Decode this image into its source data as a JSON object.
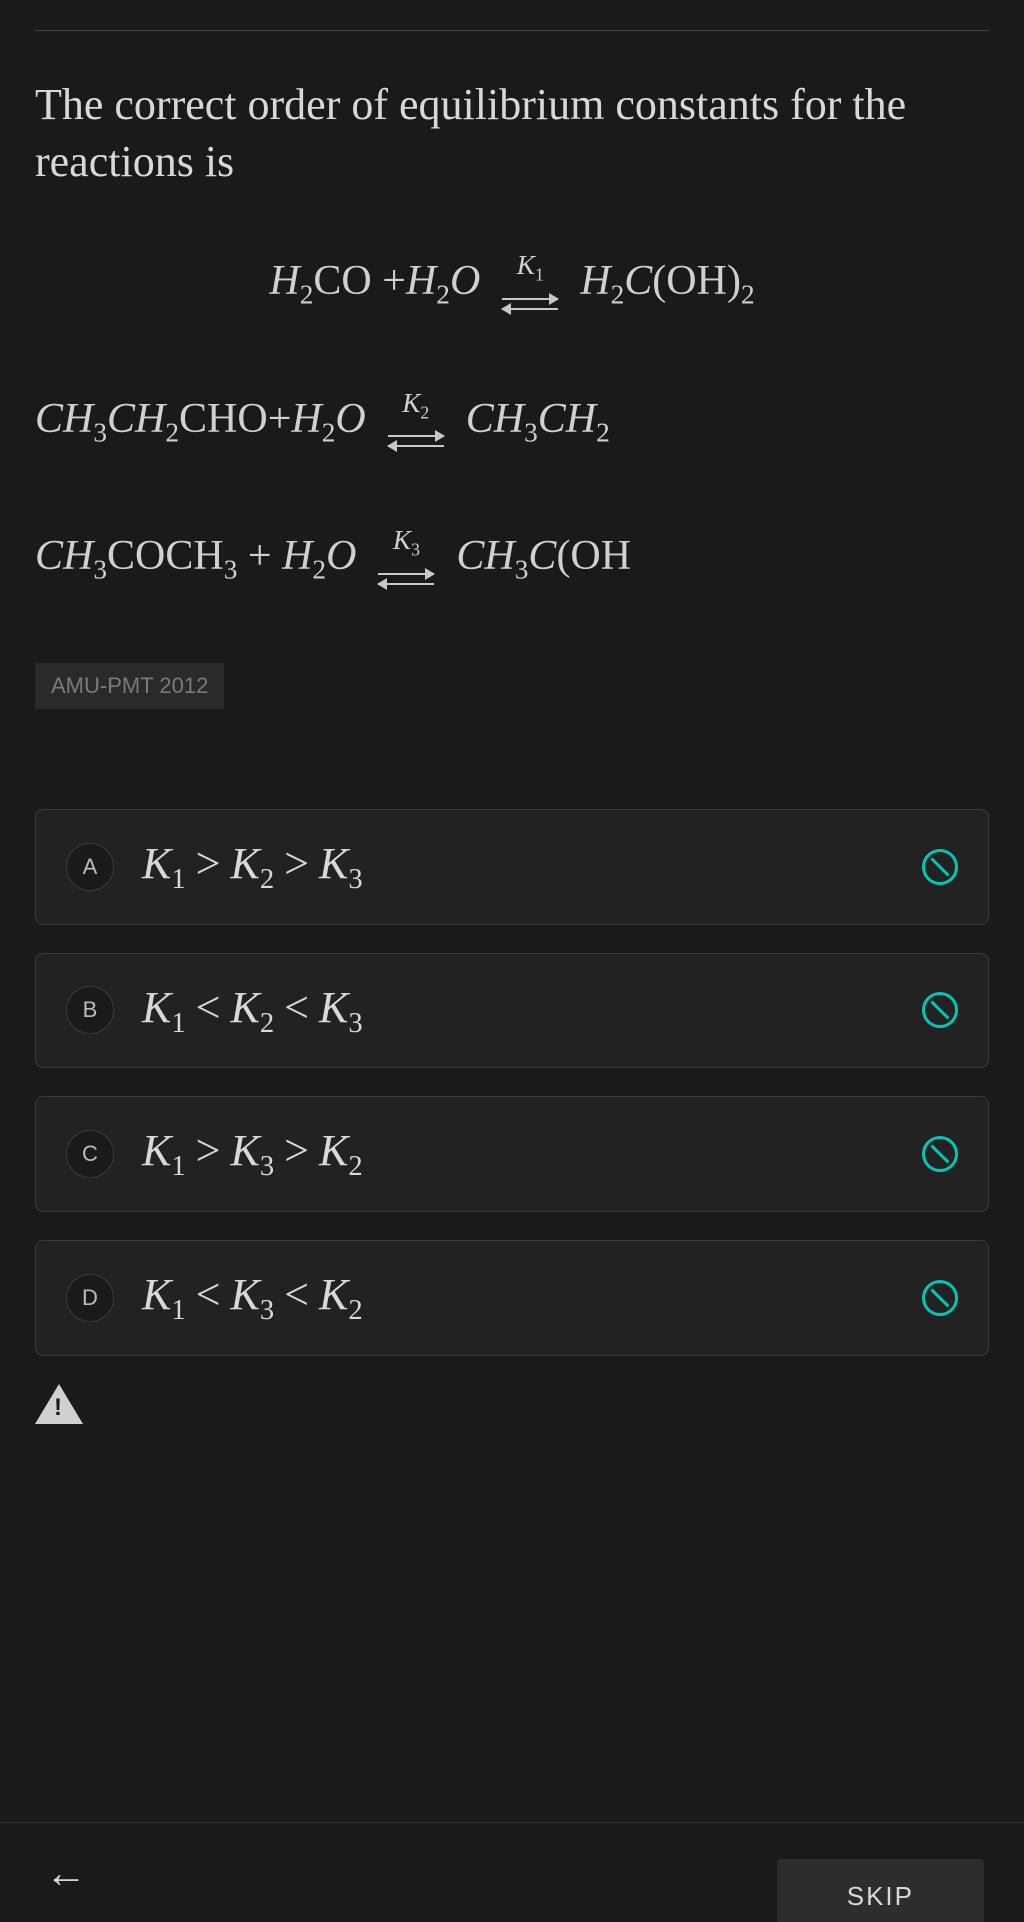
{
  "question": {
    "text": "The correct order of equilibrium constants for the reactions is",
    "source_tag": "AMU-PMT 2012"
  },
  "equations": {
    "eq1": {
      "k_label": "K",
      "k_sub": "1"
    },
    "eq2": {
      "k_label": "K",
      "k_sub": "2"
    },
    "eq3": {
      "k_label": "K",
      "k_sub": "3"
    }
  },
  "options": [
    {
      "letter": "A",
      "relation": ">",
      "order": [
        "1",
        "2",
        "3"
      ]
    },
    {
      "letter": "B",
      "relation": "<",
      "order": [
        "1",
        "2",
        "3"
      ]
    },
    {
      "letter": "C",
      "relation": ">",
      "order": [
        "1",
        "3",
        "2"
      ]
    },
    {
      "letter": "D",
      "relation": "<",
      "order": [
        "1",
        "3",
        "2"
      ]
    }
  ],
  "bottom": {
    "back": "←",
    "skip": "SKIP"
  },
  "colors": {
    "bg": "#1a1a1a",
    "text": "#d8d8d8",
    "accent": "#00c8b4",
    "option_bg": "#222"
  }
}
